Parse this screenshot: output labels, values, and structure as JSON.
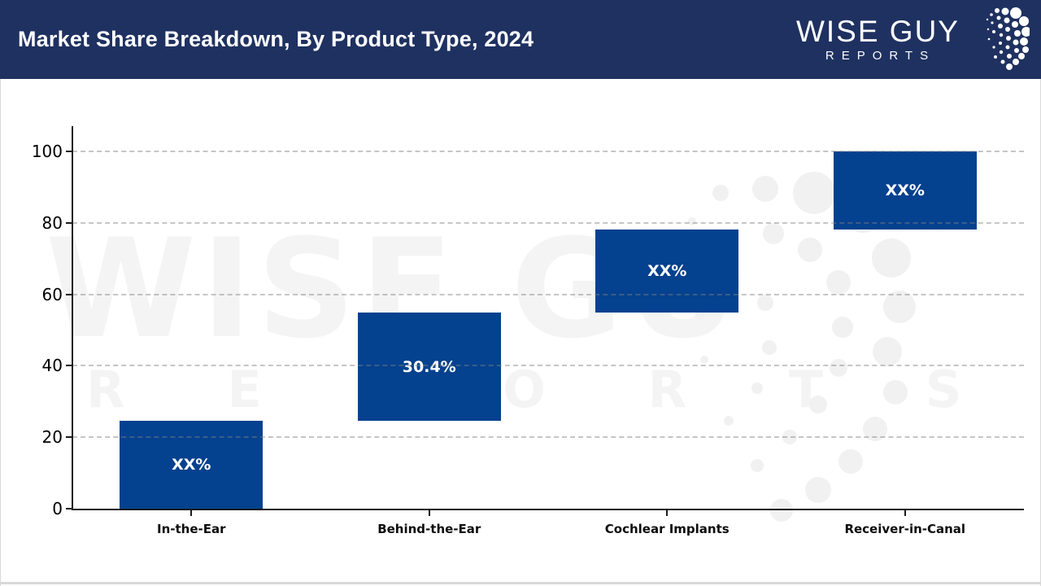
{
  "header": {
    "title": "Market Share Breakdown, By Product Type, 2024",
    "logo": {
      "line1": "WISE GUY",
      "line2": "REPORTS"
    }
  },
  "watermark": {
    "line1": "WISE GU",
    "line2": "R E P O R T S"
  },
  "colors": {
    "header_bg": "#1f3160",
    "bar_fill": "#04418e",
    "gridline": "rgba(128,128,128,0.45)"
  },
  "chart": {
    "y_ticks": [
      "0",
      "20",
      "40",
      "60",
      "80",
      "100"
    ]
  },
  "chart_data": {
    "type": "bar",
    "subtype": "waterfall",
    "title": "Market Share Breakdown, By Product Type, 2024",
    "xlabel": "",
    "ylabel": "",
    "ylim": [
      0,
      107
    ],
    "grid": "dashed horizontal",
    "categories": [
      "In-the-Ear",
      "Behind-the-Ear",
      "Cochlear Implants",
      "Receiver-in-Canal"
    ],
    "bars": [
      {
        "category": "In-the-Ear",
        "label": "XX%",
        "start": 0,
        "end": 24.5
      },
      {
        "category": "Behind-the-Ear",
        "label": "30.4%",
        "start": 24.5,
        "end": 54.9
      },
      {
        "category": "Cochlear Implants",
        "label": "XX%",
        "start": 54.9,
        "end": 78.1
      },
      {
        "category": "Receiver-in-Canal",
        "label": "XX%",
        "start": 78.1,
        "end": 100
      }
    ]
  }
}
